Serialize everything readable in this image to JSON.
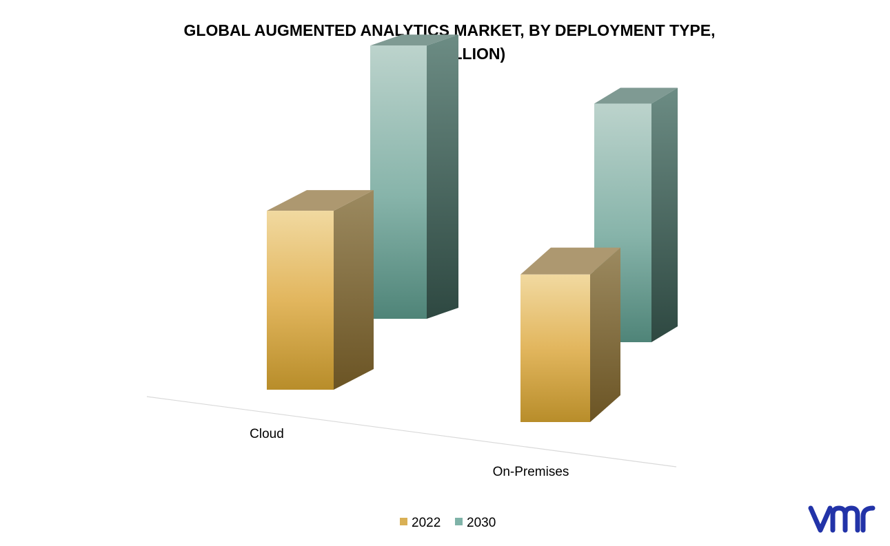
{
  "chart_data": {
    "type": "bar",
    "style": "3d-clustered-column",
    "title_lines": [
      "GLOBAL AUGMENTED ANALYTICS MARKET, BY DEPLOYMENT TYPE,",
      "(USD BILLION)"
    ],
    "title": "GLOBAL AUGMENTED ANALYTICS MARKET, BY DEPLOYMENT TYPE, (USD BILLION)",
    "xlabel": "",
    "ylabel": "",
    "categories": [
      "Cloud",
      "On-Premises"
    ],
    "series": [
      {
        "name": "2022",
        "values": [
          5.7,
          4.7
        ],
        "color": "#d9b055"
      },
      {
        "name": "2030",
        "values": [
          8.7,
          7.6
        ],
        "color": "#7fb3a8"
      }
    ],
    "axis_visible": false,
    "grid": false,
    "legend_position": "bottom"
  },
  "colors": {
    "series_2022_front_light": "#f1d9a0",
    "series_2022_front_mid": "#e2b65e",
    "series_2022_front_dark": "#b88d2a",
    "series_2022_side_light": "#9c8a60",
    "series_2022_side_dark": "#6b5424",
    "series_2022_top": "#ad9870",
    "series_2030_front_light": "#bcd3cc",
    "series_2030_front_mid": "#87b4aa",
    "series_2030_front_dark": "#4f8478",
    "series_2030_side_light": "#6c8c84",
    "series_2030_side_dark": "#2e4841",
    "series_2030_top": "#7f9a93",
    "floor_line": "#d9d9d9",
    "logo_blue": "#2233a8"
  },
  "logo": {
    "text": "vmr",
    "icon": "vmr-logo"
  }
}
